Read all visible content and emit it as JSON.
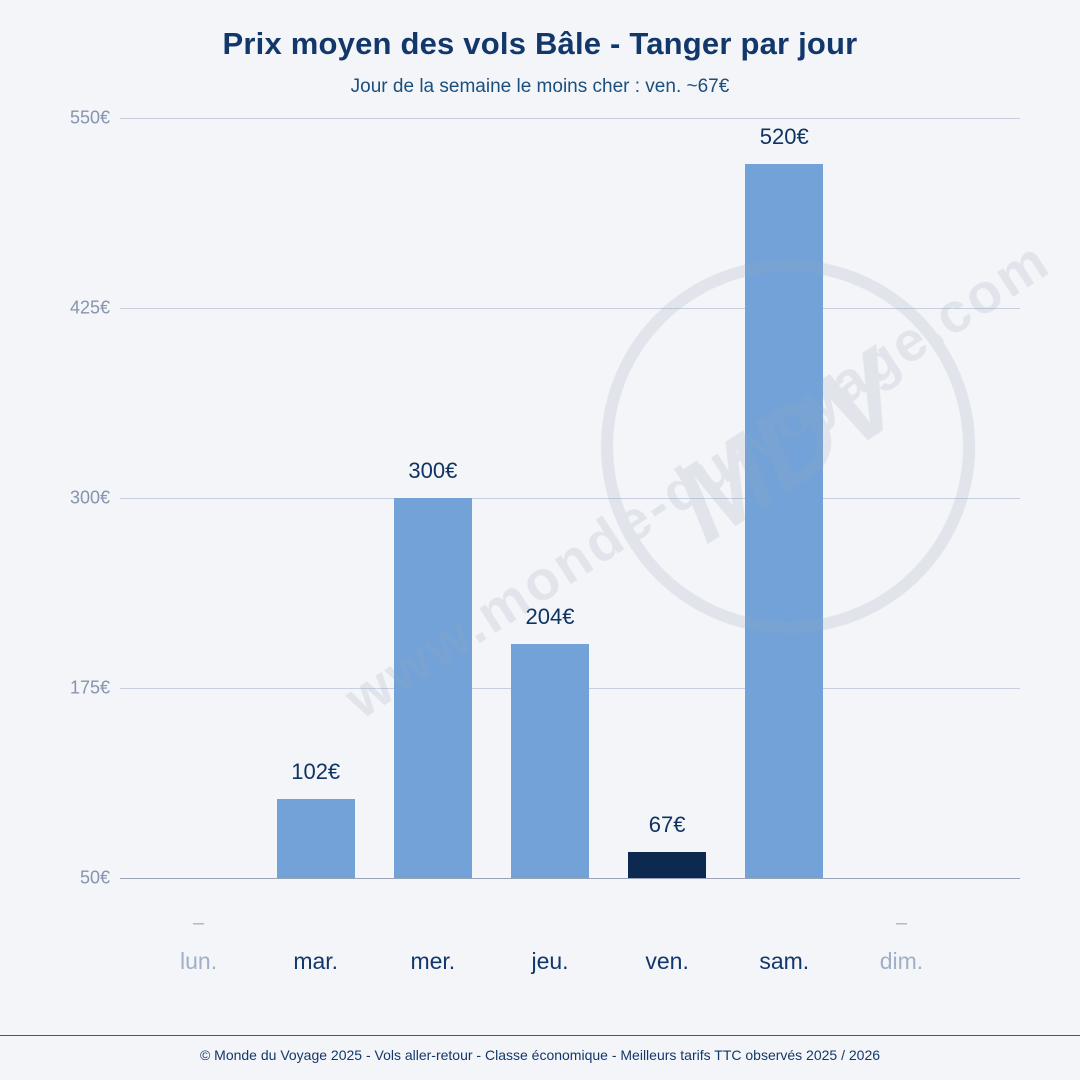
{
  "header": {
    "title": "Prix moyen des vols Bâle - Tanger par jour",
    "subtitle": "Jour de la semaine le moins cher : ven. ~67€"
  },
  "chart_data": {
    "type": "bar",
    "title": "Prix moyen des vols Bâle - Tanger par jour",
    "subtitle": "Jour de la semaine le moins cher : ven. ~67€",
    "categories": [
      "lun.",
      "mar.",
      "mer.",
      "jeu.",
      "ven.",
      "sam.",
      "dim."
    ],
    "values": [
      null,
      102,
      300,
      204,
      67,
      520,
      null
    ],
    "value_labels": [
      "–",
      "102€",
      "300€",
      "204€",
      "67€",
      "520€",
      "–"
    ],
    "no_data_symbol": "–",
    "highlight_index": 4,
    "ylim": [
      50,
      550
    ],
    "yticks": [
      550,
      425,
      300,
      175,
      50
    ],
    "ytick_labels": [
      "550€",
      "425€",
      "300€",
      "175€",
      "50€"
    ],
    "grid": true,
    "legend": "none",
    "bar_color": "#72a2d8",
    "highlight_color": "#0d2950"
  },
  "watermark": {
    "url": "www.monde-du-voyage.com",
    "badge": "MDV"
  },
  "footer": {
    "text": "© Monde du Voyage 2025 - Vols aller-retour - Classe économique - Meilleurs tarifs TTC observés 2025 / 2026"
  }
}
